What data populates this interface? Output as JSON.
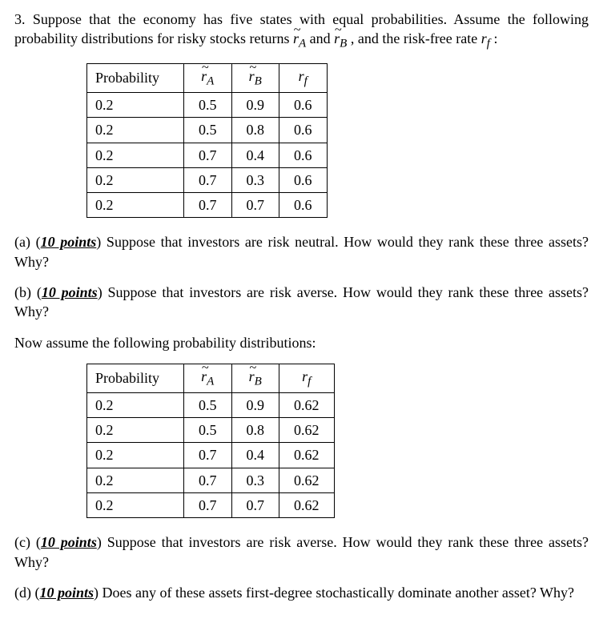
{
  "intro": {
    "num": "3.",
    "text1": "Suppose that the economy has five states with equal probabilities. Assume the following probability distributions for risky stocks returns ",
    "rA": "r",
    "subA": "A",
    "and": " and ",
    "rB": "r",
    "subB": "B",
    "text2": " , and the risk-free rate ",
    "rf": "r",
    "subf": "f",
    "colon": " :"
  },
  "table1": {
    "headers": [
      "Probability",
      "r̃",
      "A",
      "r̃",
      "B",
      "r",
      "f"
    ],
    "h_prob": "Probability",
    "rows": [
      [
        "0.2",
        "0.5",
        "0.9",
        "0.6"
      ],
      [
        "0.2",
        "0.5",
        "0.8",
        "0.6"
      ],
      [
        "0.2",
        "0.7",
        "0.4",
        "0.6"
      ],
      [
        "0.2",
        "0.7",
        "0.3",
        "0.6"
      ],
      [
        "0.2",
        "0.7",
        "0.7",
        "0.6"
      ]
    ]
  },
  "qa": {
    "label": "(a) (",
    "points": "10 points",
    "text": ") Suppose that investors are risk neutral. How would they rank these three assets? Why?"
  },
  "qb": {
    "label": "(b) (",
    "points": "10 points",
    "text": ") Suppose that investors are risk averse. How would they rank these three assets? Why?"
  },
  "mid": "Now assume the following probability distributions:",
  "table2": {
    "rows": [
      [
        "0.2",
        "0.5",
        "0.9",
        "0.62"
      ],
      [
        "0.2",
        "0.5",
        "0.8",
        "0.62"
      ],
      [
        "0.2",
        "0.7",
        "0.4",
        "0.62"
      ],
      [
        "0.2",
        "0.7",
        "0.3",
        "0.62"
      ],
      [
        "0.2",
        "0.7",
        "0.7",
        "0.62"
      ]
    ]
  },
  "qc": {
    "label": "(c) (",
    "points": "10 points",
    "text": ") Suppose that investors are risk averse. How would they rank these three assets? Why?"
  },
  "qd": {
    "label": "(d) (",
    "points": "10 points",
    "text": ") Does any of these assets first-degree stochastically dominate another asset? Why?"
  }
}
